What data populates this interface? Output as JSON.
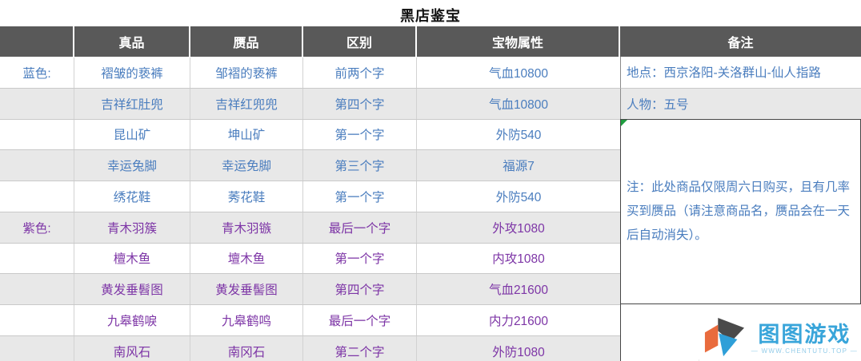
{
  "title": "黑店鉴宝",
  "table": {
    "headers": [
      "",
      "真品",
      "赝品",
      "区别",
      "宝物属性",
      "备注"
    ],
    "rows": [
      {
        "label": "蓝色:",
        "genuine": "褶皱的亵裤",
        "fake": "邹褶的亵裤",
        "diff": "前两个字",
        "attr": "气血10800",
        "color": "blue"
      },
      {
        "label": "",
        "genuine": "吉祥红肚兜",
        "fake": "吉祥红兜兜",
        "diff": "第四个字",
        "attr": "气血10800",
        "color": "blue"
      },
      {
        "label": "",
        "genuine": "昆山矿",
        "fake": "坤山矿",
        "diff": "第一个字",
        "attr": "外防540",
        "color": "blue"
      },
      {
        "label": "",
        "genuine": "幸运兔脚",
        "fake": "幸运免脚",
        "diff": "第三个字",
        "attr": "福源7",
        "color": "blue"
      },
      {
        "label": "",
        "genuine": "绣花鞋",
        "fake": "莠花鞋",
        "diff": "第一个字",
        "attr": "外防540",
        "color": "blue"
      },
      {
        "label": "紫色:",
        "genuine": "青木羽簇",
        "fake": "青木羽镞",
        "diff": "最后一个字",
        "attr": "外攻1080",
        "color": "purple"
      },
      {
        "label": "",
        "genuine": "檀木鱼",
        "fake": "壇木鱼",
        "diff": "第一个字",
        "attr": "内攻1080",
        "color": "purple"
      },
      {
        "label": "",
        "genuine": "黄发垂髫图",
        "fake": "黄发垂髻图",
        "diff": "第四个字",
        "attr": "气血21600",
        "color": "purple"
      },
      {
        "label": "",
        "genuine": "九皋鹤唳",
        "fake": "九皋鹤鸣",
        "diff": "最后一个字",
        "attr": "内力21600",
        "color": "purple"
      },
      {
        "label": "",
        "genuine": "南风石",
        "fake": "南冈石",
        "diff": "第二个字",
        "attr": "外防1080",
        "color": "purple"
      }
    ],
    "notes": {
      "location": "地点：西京洛阳-关洛群山-仙人指路",
      "npc": "人物：五号",
      "remark": "注：此处商品仅限周六日购买，且有几率买到赝品（请注意商品名，赝品会在一天后自动消失）。"
    }
  },
  "logo": {
    "name": "图图游戏",
    "url_line": "— WWW.CHENTUTU.TOP —"
  },
  "colors": {
    "header_bg": "#595959",
    "row_alt": "#e8e8e8",
    "blue_text": "#4a7dbe",
    "purple_text": "#7d35a6",
    "note_border": "#454545",
    "marker_green": "#1f9d3f",
    "logo_blue": "#39a5da",
    "logo_orange": "#e96b3d",
    "logo_dark": "#4a4a4a",
    "logo_url_color": "#93cce9"
  }
}
